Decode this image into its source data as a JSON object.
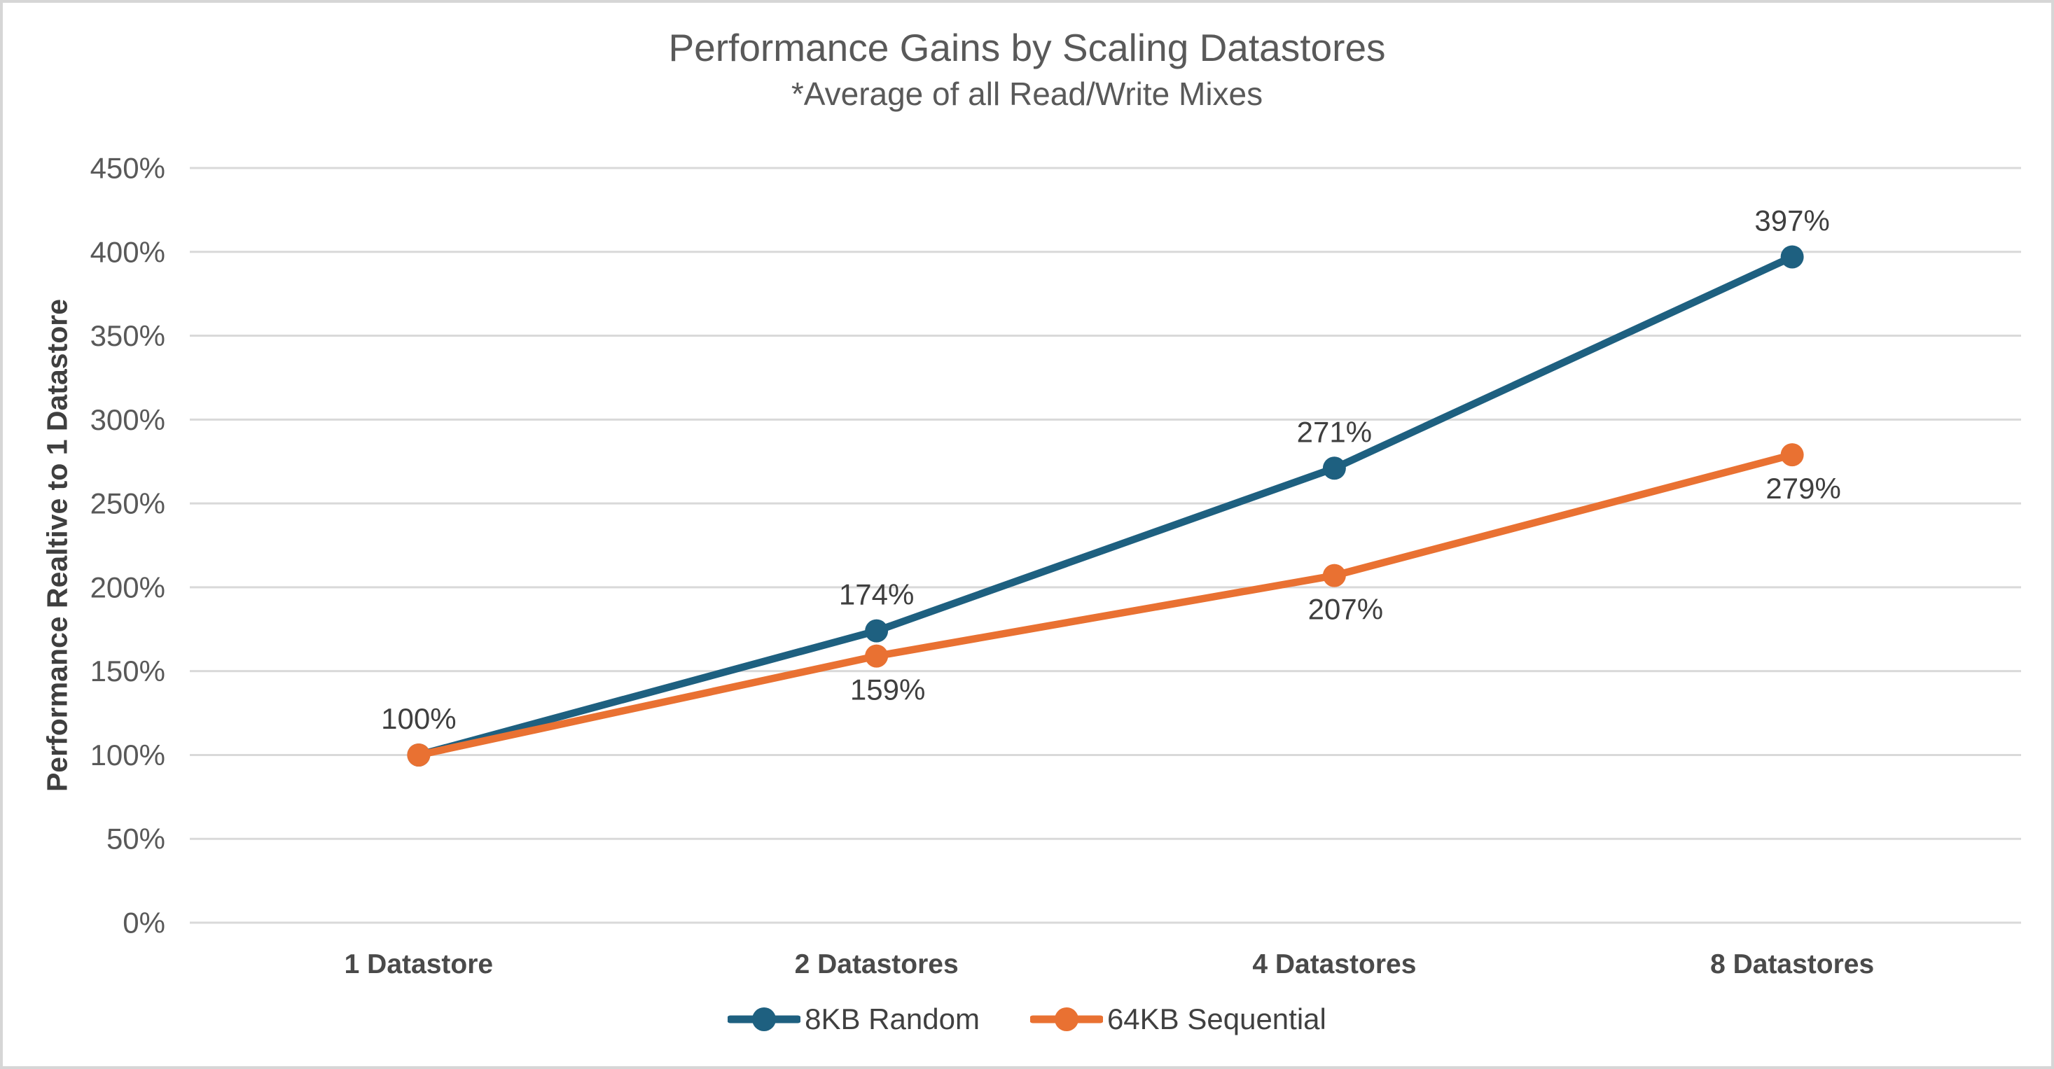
{
  "window": {
    "background": "#ffffff",
    "border_color": "#d6d6d6"
  },
  "chart_data": {
    "type": "line",
    "title": "Performance Gains by Scaling Datastores",
    "subtitle": "*Average of all Read/Write Mixes",
    "ylabel": "Performance Realtive to 1 Datastore",
    "xlabel": "",
    "categories": [
      "1 Datastore",
      "2 Datastores",
      "4 Datastores",
      "8 Datastores"
    ],
    "series": [
      {
        "name": "8KB Random",
        "color": "#1E6080",
        "values": [
          100,
          174,
          271,
          397
        ],
        "data_labels": [
          "100%",
          "174%",
          "271%",
          "397%"
        ],
        "label_position": "above"
      },
      {
        "name": "64KB Sequential",
        "color": "#E97132",
        "values": [
          100,
          159,
          207,
          279
        ],
        "data_labels": [
          null,
          "159%",
          "207%",
          "279%"
        ],
        "label_position": "below"
      }
    ],
    "ylim": [
      0,
      450
    ],
    "y_tick_step": 50,
    "y_ticks": [
      "0%",
      "50%",
      "100%",
      "150%",
      "200%",
      "250%",
      "300%",
      "350%",
      "400%",
      "450%"
    ],
    "grid": true,
    "legend_position": "bottom",
    "style": {
      "grid_color": "#D9D9D9",
      "tick_color": "#595959",
      "title_color": "#595959",
      "category_color": "#4A4A4A",
      "data_label_color": "#3F3F3F",
      "legend_text_color": "#404040"
    }
  }
}
